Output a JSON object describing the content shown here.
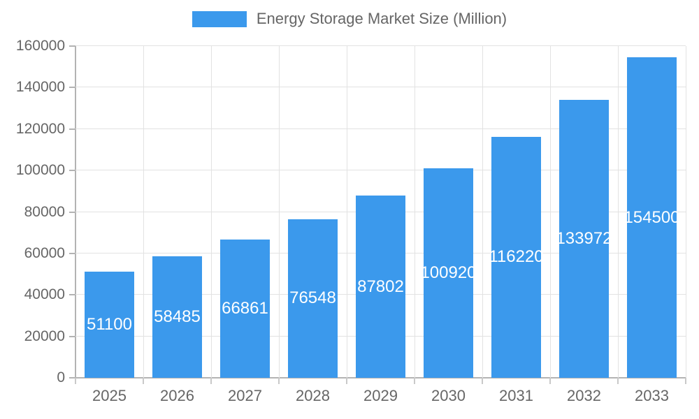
{
  "legend": {
    "label": "Energy Storage Market Size (Million)"
  },
  "colors": {
    "background": "#FFFFFF",
    "bar": "#3B99EC",
    "grid": "#E2E2E2",
    "axis": "#B3B3B3",
    "tick": "#C9C9C9",
    "text": "#666666",
    "bar_label": "#FFFFFF"
  },
  "chart_data": {
    "type": "bar",
    "title": "Energy Storage Market Size (Million)",
    "categories": [
      "2025",
      "2026",
      "2027",
      "2028",
      "2029",
      "2030",
      "2031",
      "2032",
      "2033"
    ],
    "values": [
      51100,
      58485,
      66861,
      76548,
      87802,
      100920,
      116220,
      133972,
      154500
    ],
    "xlabel": "",
    "ylabel": "",
    "ylim": [
      0,
      160000
    ],
    "ytick_step": 20000,
    "grid": true,
    "legend_position": "top",
    "bar_value_labels": "inside-center"
  }
}
